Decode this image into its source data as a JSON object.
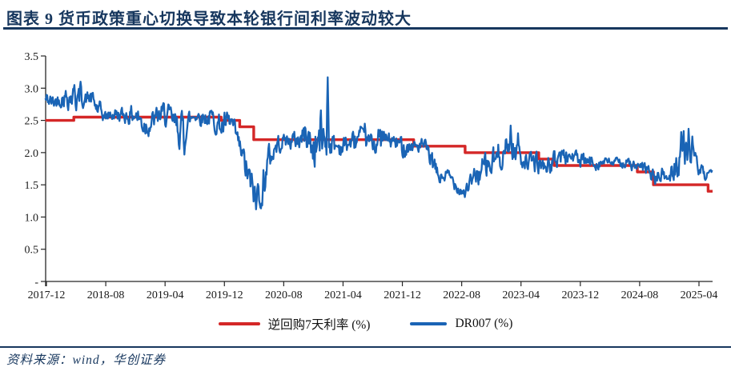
{
  "header": {
    "title": "图表 9  货币政策重心切换导致本轮银行间利率波动较大"
  },
  "footer": {
    "source": "资料来源：wind，华创证券"
  },
  "colors": {
    "navy": "#17375E",
    "red": "#D42727",
    "blue": "#1A64B5",
    "axis": "#262626"
  },
  "legend": {
    "items": [
      {
        "label": "逆回购7天利率 (%)",
        "color": "#D42727"
      },
      {
        "label": "DR007 (%)",
        "color": "#1A64B5"
      }
    ]
  },
  "chart_data": {
    "type": "line",
    "title": "",
    "xlabel": "",
    "ylabel": "",
    "ylim": [
      0,
      3.5
    ],
    "grid": false,
    "legend_position": "bottom",
    "x_range": [
      "2017-12",
      "2025-06"
    ],
    "x_ticks": [
      "2017-12",
      "2018-08",
      "2019-04",
      "2019-12",
      "2020-08",
      "2021-04",
      "2021-12",
      "2022-08",
      "2023-04",
      "2023-12",
      "2024-08",
      "2025-04"
    ],
    "y_ticks": {
      "values": [
        0,
        0.5,
        1.0,
        1.5,
        2.0,
        2.5,
        3.0,
        3.5
      ],
      "labels": [
        "-",
        "0.5",
        "1.0",
        "1.5",
        "2.0",
        "2.5",
        "3.0",
        "3.5"
      ]
    },
    "series": [
      {
        "name": "逆回购7天利率 (%)",
        "color": "#D42727",
        "style": "step",
        "changepoints": [
          {
            "date": "2017-12-01",
            "value": 2.5
          },
          {
            "date": "2018-03-22",
            "value": 2.55
          },
          {
            "date": "2019-11-18",
            "value": 2.5
          },
          {
            "date": "2020-02-03",
            "value": 2.4
          },
          {
            "date": "2020-03-30",
            "value": 2.2
          },
          {
            "date": "2022-01-17",
            "value": 2.1
          },
          {
            "date": "2022-08-15",
            "value": 2.0
          },
          {
            "date": "2023-06-13",
            "value": 1.9
          },
          {
            "date": "2023-08-15",
            "value": 1.8
          },
          {
            "date": "2024-07-22",
            "value": 1.7
          },
          {
            "date": "2024-09-27",
            "value": 1.5
          },
          {
            "date": "2025-05-08",
            "value": 1.4
          }
        ]
      },
      {
        "name": "DR007 (%)",
        "color": "#1A64B5",
        "style": "daily-noisy",
        "start_month": "2017-12",
        "monthly_mean": [
          2.82,
          2.78,
          2.85,
          2.88,
          2.85,
          2.82,
          2.85,
          2.65,
          2.55,
          2.6,
          2.58,
          2.58,
          2.6,
          2.45,
          2.45,
          2.55,
          2.6,
          2.5,
          2.35,
          2.45,
          2.6,
          2.55,
          2.55,
          2.45,
          2.4,
          2.45,
          2.1,
          1.7,
          1.35,
          1.45,
          1.9,
          2.1,
          2.2,
          2.18,
          2.2,
          2.3,
          2.05,
          2.25,
          2.2,
          2.1,
          2.1,
          2.15,
          2.2,
          2.18,
          2.15,
          2.2,
          2.2,
          2.15,
          2.1,
          2.1,
          2.1,
          2.1,
          1.85,
          1.6,
          1.65,
          1.55,
          1.4,
          1.5,
          1.65,
          1.75,
          1.8,
          1.95,
          2.05,
          2.05,
          1.95,
          1.85,
          1.85,
          1.8,
          1.8,
          1.95,
          1.95,
          1.95,
          1.85,
          1.85,
          1.85,
          1.85,
          1.85,
          1.85,
          1.85,
          1.8,
          1.75,
          1.75,
          1.6,
          1.65,
          1.6,
          1.85,
          2.05,
          1.95,
          1.75,
          1.6,
          1.65
        ],
        "monthly_amplitude": [
          0.12,
          0.1,
          0.12,
          0.18,
          0.18,
          0.1,
          0.13,
          0.15,
          0.08,
          0.1,
          0.1,
          0.12,
          0.15,
          0.2,
          0.15,
          0.15,
          0.18,
          0.15,
          0.25,
          0.2,
          0.1,
          0.12,
          0.15,
          0.15,
          0.2,
          0.15,
          0.15,
          0.25,
          0.2,
          0.25,
          0.2,
          0.15,
          0.1,
          0.12,
          0.15,
          0.2,
          0.3,
          0.45,
          0.2,
          0.15,
          0.15,
          0.12,
          0.2,
          0.12,
          0.15,
          0.2,
          0.12,
          0.12,
          0.15,
          0.1,
          0.1,
          0.1,
          0.15,
          0.1,
          0.1,
          0.1,
          0.08,
          0.1,
          0.15,
          0.2,
          0.25,
          0.2,
          0.2,
          0.2,
          0.15,
          0.12,
          0.15,
          0.1,
          0.12,
          0.15,
          0.15,
          0.12,
          0.12,
          0.1,
          0.1,
          0.08,
          0.06,
          0.06,
          0.08,
          0.08,
          0.08,
          0.1,
          0.1,
          0.1,
          0.15,
          0.25,
          0.25,
          0.15,
          0.1,
          0.08,
          0.08
        ],
        "key_extremes": [
          {
            "date": "2018-03-25",
            "value": 3.05
          },
          {
            "date": "2018-04-20",
            "value": 3.1
          },
          {
            "date": "2019-06-20",
            "value": 1.97
          },
          {
            "date": "2020-04-10",
            "value": 1.12
          },
          {
            "date": "2020-05-05",
            "value": 1.18
          },
          {
            "date": "2021-01-29",
            "value": 3.17
          },
          {
            "date": "2021-06-30",
            "value": 2.45
          },
          {
            "date": "2022-08-15",
            "value": 1.31
          },
          {
            "date": "2023-02-20",
            "value": 2.42
          },
          {
            "date": "2023-03-20",
            "value": 2.3
          },
          {
            "date": "2025-01-20",
            "value": 2.32
          },
          {
            "date": "2025-02-20",
            "value": 2.37
          },
          {
            "date": "2025-03-05",
            "value": 2.25
          }
        ],
        "noise_seed": 42
      }
    ]
  }
}
